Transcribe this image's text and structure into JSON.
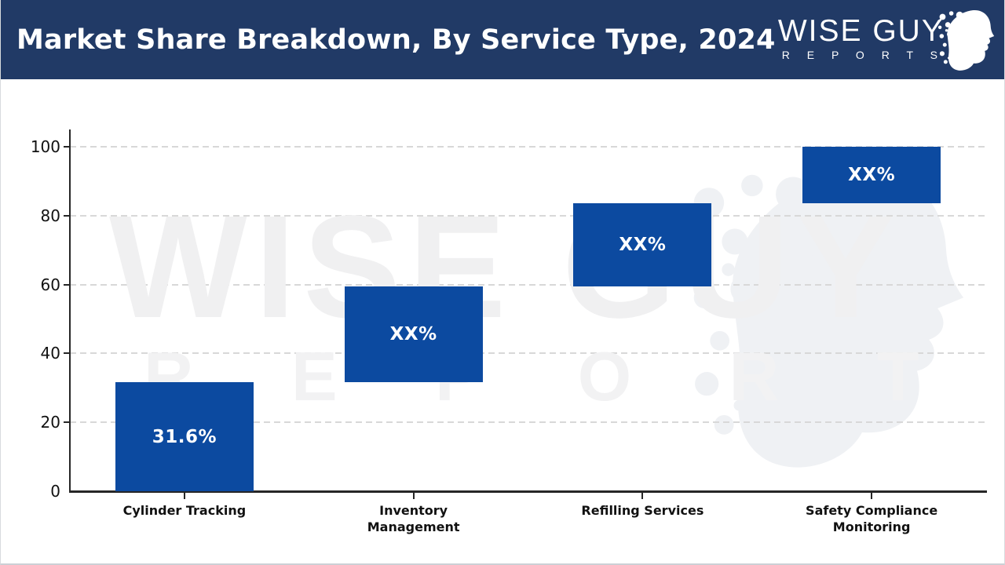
{
  "header": {
    "title": "Market Share Breakdown, By Service Type, 2024",
    "bg_color": "#213a66",
    "logo": {
      "line1": "WISE GUY",
      "line2": "R E P O R T S"
    }
  },
  "watermark": {
    "line1": "WISE GUY",
    "line2": "R E P O R T S"
  },
  "chart_data": {
    "type": "bar",
    "variant": "waterfall",
    "title": "Market Share Breakdown, By Service Type, 2024",
    "categories": [
      "Cylinder Tracking",
      "Inventory\nManagement",
      "Refilling Services",
      "Safety Compliance\nMonitoring"
    ],
    "segments": [
      {
        "category": "Cylinder Tracking",
        "start": 0,
        "end": 31.6,
        "label": "31.6%"
      },
      {
        "category": "Inventory Management",
        "start": 31.6,
        "end": 59.5,
        "label": "XX%"
      },
      {
        "category": "Refilling Services",
        "start": 59.5,
        "end": 83.6,
        "label": "XX%"
      },
      {
        "category": "Safety Compliance Monitoring",
        "start": 83.6,
        "end": 100,
        "label": "XX%"
      }
    ],
    "xlabel": "",
    "ylabel": "",
    "ylim": [
      0,
      100
    ],
    "yticks": [
      0,
      20,
      40,
      60,
      80,
      100
    ],
    "grid": "horizontal-dashed",
    "legend": "none",
    "colors": {
      "bar": "#0c4aa0",
      "bar_label": "#ffffff",
      "header_bg": "#213a66",
      "axis": "#262626",
      "grid": "#d8d8d8",
      "watermark": "#eff1f4"
    }
  }
}
